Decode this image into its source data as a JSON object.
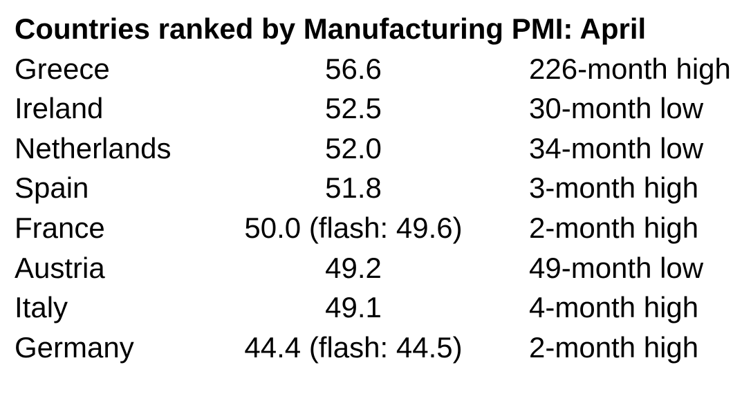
{
  "title": "Countries ranked by Manufacturing PMI: April",
  "table": {
    "rows": [
      {
        "country": "Greece",
        "value": "56.6",
        "change": "226-month high"
      },
      {
        "country": "Ireland",
        "value": "52.5",
        "change": "30-month low"
      },
      {
        "country": "Netherlands",
        "value": "52.0",
        "change": "34-month low"
      },
      {
        "country": "Spain",
        "value": "51.8",
        "change": "3-month high"
      },
      {
        "country": "France",
        "value": "50.0 (flash: 49.6)",
        "change": "2-month high"
      },
      {
        "country": "Austria",
        "value": "49.2",
        "change": "49-month low"
      },
      {
        "country": "Italy",
        "value": "49.1",
        "change": "4-month high"
      },
      {
        "country": "Germany",
        "value": "44.4 (flash: 44.5)",
        "change": "2-month high"
      }
    ]
  },
  "chart_data": {
    "type": "table",
    "title": "Countries ranked by Manufacturing PMI: April",
    "columns": [
      "country",
      "pmi_value",
      "streak_note"
    ],
    "rows": [
      [
        "Greece",
        56.6,
        "226-month high"
      ],
      [
        "Ireland",
        52.5,
        "30-month low"
      ],
      [
        "Netherlands",
        52.0,
        "34-month low"
      ],
      [
        "Spain",
        51.8,
        "3-month high"
      ],
      [
        "France",
        50.0,
        "2-month high"
      ],
      [
        "Austria",
        49.2,
        "49-month low"
      ],
      [
        "Italy",
        49.1,
        "4-month high"
      ],
      [
        "Germany",
        44.4,
        "2-month high"
      ]
    ],
    "flash_values": {
      "France": 49.6,
      "Germany": 44.5
    }
  },
  "colors": {
    "text": "#000000",
    "background": "#ffffff"
  }
}
